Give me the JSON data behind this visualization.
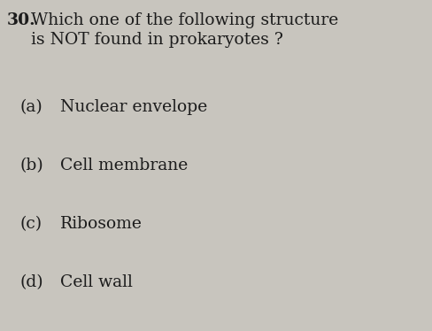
{
  "background_color": "#c8c5be",
  "question_number": "30.",
  "question_line1": "Which one of the following structure",
  "question_line2": "is NOT found in prokaryotes ?",
  "options": [
    {
      "label": "(a)",
      "text": "Nuclear envelope"
    },
    {
      "label": "(b)",
      "text": "Cell membrane"
    },
    {
      "label": "(c)",
      "text": "Ribosome"
    },
    {
      "label": "(d)",
      "text": "Cell wall"
    }
  ],
  "text_color": "#1c1c1c",
  "question_fontsize": 13.5,
  "option_fontsize": 13.5,
  "font_family": "DejaVu Serif"
}
